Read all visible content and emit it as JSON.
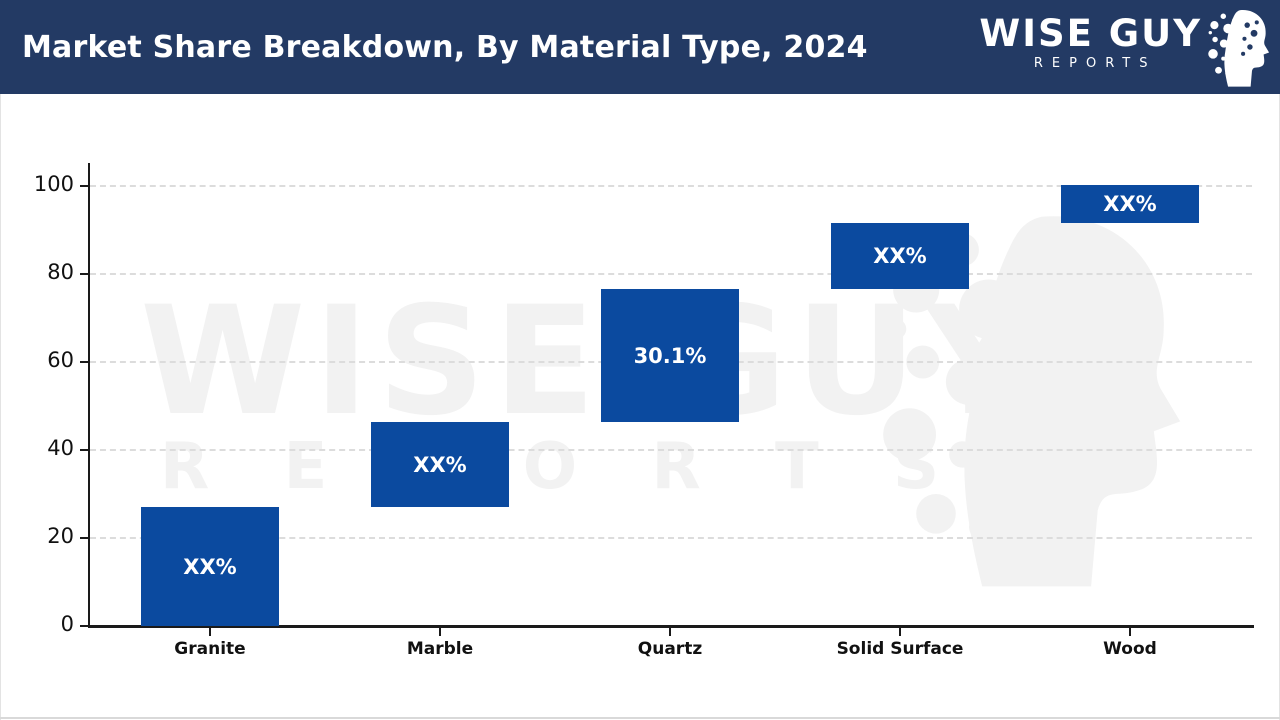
{
  "header": {
    "title": "Market Share Breakdown, By Material Type, 2024",
    "bg_color": "#233a64",
    "logo": {
      "line1": "WISE GUY",
      "line2": "REPORTS"
    }
  },
  "watermark": {
    "line1": "WISE GUY",
    "line2": "R E P O R T S"
  },
  "colors": {
    "bar": "#0b4a9f",
    "axis": "#1a1a1a",
    "grid": "#dcdcdc",
    "bar_label": "#ffffff",
    "header_bg": "#233a64",
    "watermark": "#f2f2f2"
  },
  "chart_data": {
    "type": "bar",
    "subtype": "waterfall",
    "title": "Market Share Breakdown, By Material Type, 2024",
    "xlabel": "",
    "ylabel": "",
    "categories": [
      "Granite",
      "Marble",
      "Quartz",
      "Solid Surface",
      "Wood"
    ],
    "bars": [
      {
        "category": "Granite",
        "base": 0,
        "top": 27.0,
        "value": 27.0,
        "label": "XX%"
      },
      {
        "category": "Marble",
        "base": 27.0,
        "top": 46.4,
        "value": 19.4,
        "label": "XX%"
      },
      {
        "category": "Quartz",
        "base": 46.4,
        "top": 76.5,
        "value": 30.1,
        "label": "30.1%"
      },
      {
        "category": "Solid Surface",
        "base": 76.5,
        "top": 91.6,
        "value": 15.1,
        "label": "XX%"
      },
      {
        "category": "Wood",
        "base": 91.6,
        "top": 100.2,
        "value": 8.6,
        "label": "XX%"
      }
    ],
    "y_axis": {
      "ticks": [
        0,
        20,
        40,
        60,
        80,
        100
      ],
      "ylim": [
        0,
        105
      ]
    },
    "grid": "horizontal-dashed",
    "legend": "none"
  }
}
